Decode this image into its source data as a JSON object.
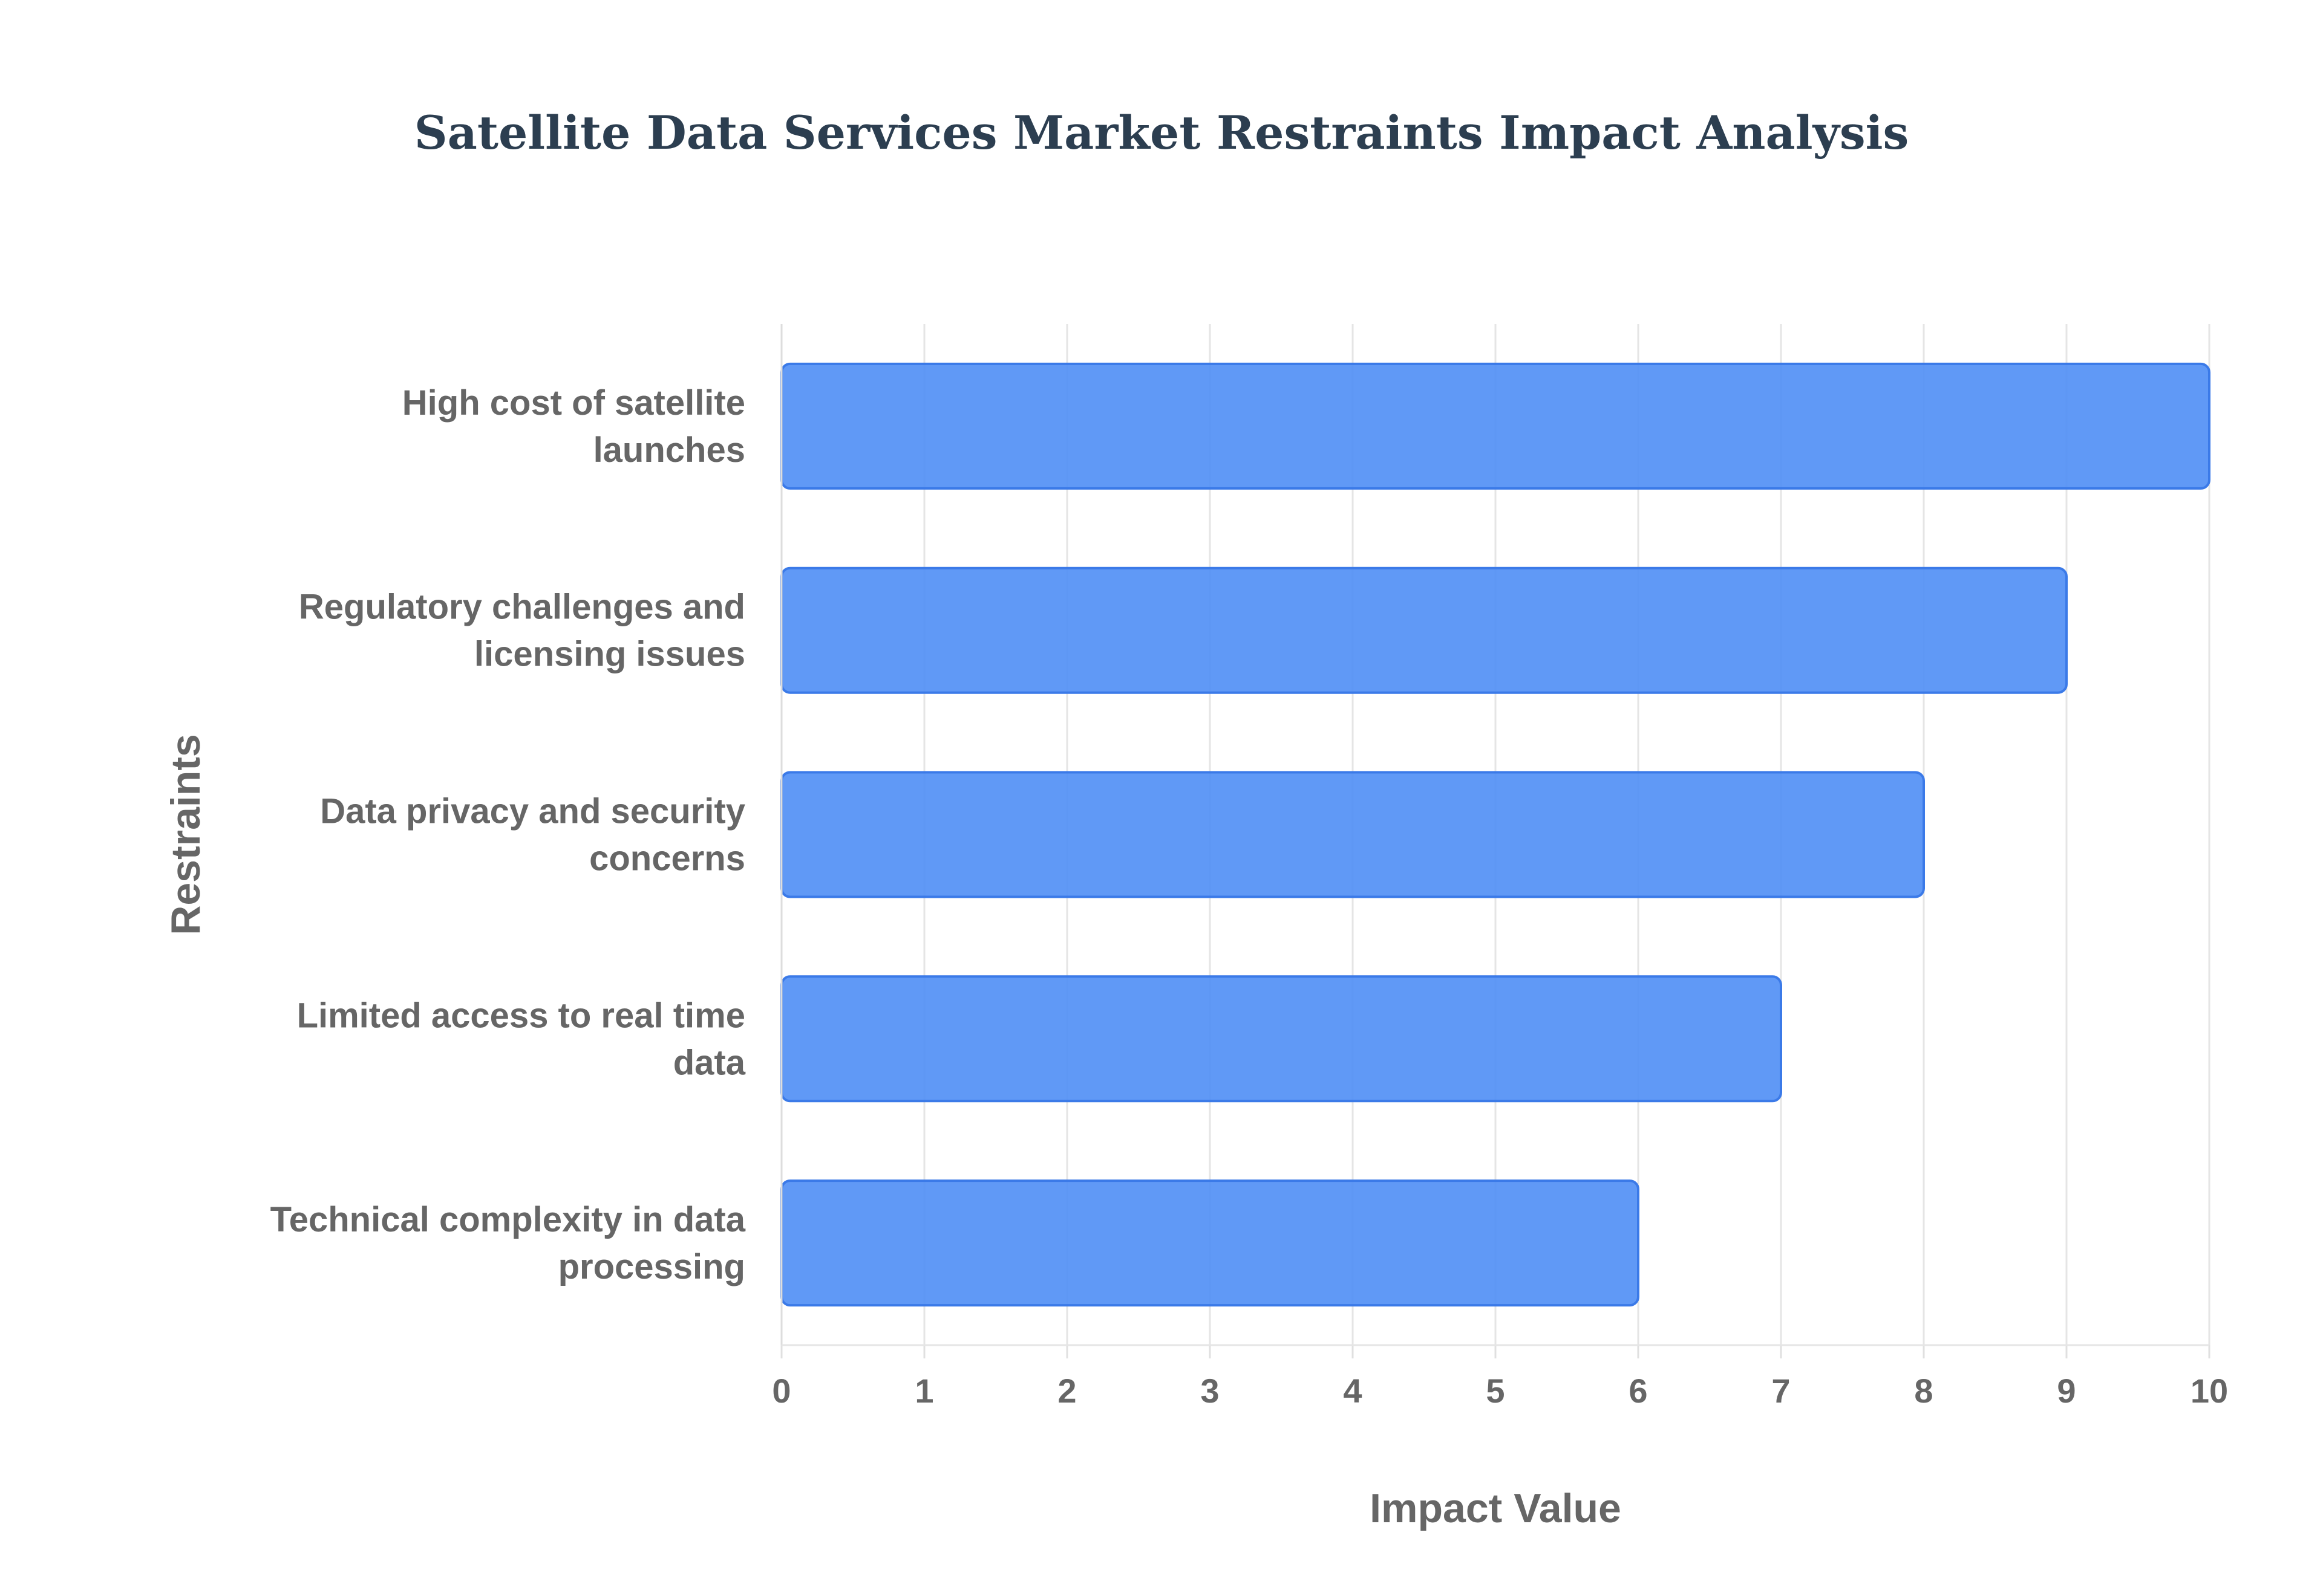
{
  "chart_data": {
    "type": "bar",
    "orientation": "horizontal",
    "title": "Satellite Data Services Market Restraints Impact Analysis",
    "xlabel": "Impact Value",
    "ylabel": "Restraints",
    "categories": [
      "High cost of satellite launches",
      "Regulatory challenges and licensing issues",
      "Data privacy and security concerns",
      "Limited access to real time data",
      "Technical complexity in data processing"
    ],
    "category_lines": [
      [
        "High cost of satellite",
        "launches"
      ],
      [
        "Regulatory challenges and",
        "licensing issues"
      ],
      [
        "Data privacy and security",
        "concerns"
      ],
      [
        "Limited access to real time",
        "data"
      ],
      [
        "Technical complexity in data",
        "processing"
      ]
    ],
    "values": [
      10,
      9,
      8,
      7,
      6
    ],
    "xlim": [
      0,
      10
    ],
    "xticks": [
      0,
      1,
      2,
      3,
      4,
      5,
      6,
      7,
      8,
      9,
      10
    ],
    "grid": true,
    "legend": "none",
    "bar_color": "#4f8ef5",
    "bar_border_color": "#3b7ae8"
  }
}
